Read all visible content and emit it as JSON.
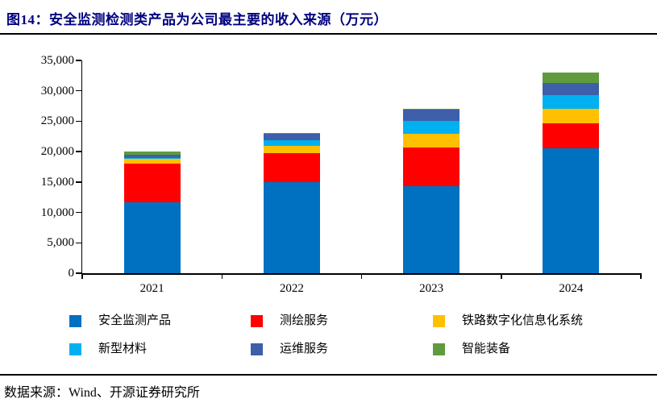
{
  "header": {
    "title": "图14：安全监测检测类产品为公司最主要的收入来源（万元）"
  },
  "footer": {
    "source": "数据来源：Wind、开源证券研究所"
  },
  "chart_data": {
    "type": "bar",
    "stacked": true,
    "title": "安全监测检测类产品为公司最主要的收入来源（万元）",
    "categories": [
      "2021",
      "2022",
      "2023",
      "2024"
    ],
    "series": [
      {
        "name": "安全监测产品",
        "color": "#0070C0",
        "values": [
          11700,
          15000,
          14300,
          20600
        ]
      },
      {
        "name": "测绘服务",
        "color": "#FF0000",
        "values": [
          6300,
          4800,
          6400,
          4000
        ]
      },
      {
        "name": "铁路数字化信息化系统",
        "color": "#FFC000",
        "values": [
          850,
          1150,
          2300,
          2400
        ]
      },
      {
        "name": "新型材料",
        "color": "#00B0F0",
        "values": [
          150,
          950,
          2000,
          2300
        ]
      },
      {
        "name": "运维服务",
        "color": "#3E5FA9",
        "values": [
          450,
          1050,
          1900,
          2000
        ]
      },
      {
        "name": "智能装备",
        "color": "#5F9B3C",
        "values": [
          550,
          150,
          100,
          1700
        ]
      }
    ],
    "totals": [
      20000,
      23100,
      27000,
      33000
    ],
    "xlabel": "",
    "ylabel": "",
    "ylim": [
      0,
      35000
    ],
    "y_tick_step": 5000,
    "y_tick_labels": [
      "0",
      "5,000",
      "10,000",
      "15,000",
      "20,000",
      "25,000",
      "30,000",
      "35,000"
    ],
    "grid": false,
    "legend_position": "bottom"
  }
}
